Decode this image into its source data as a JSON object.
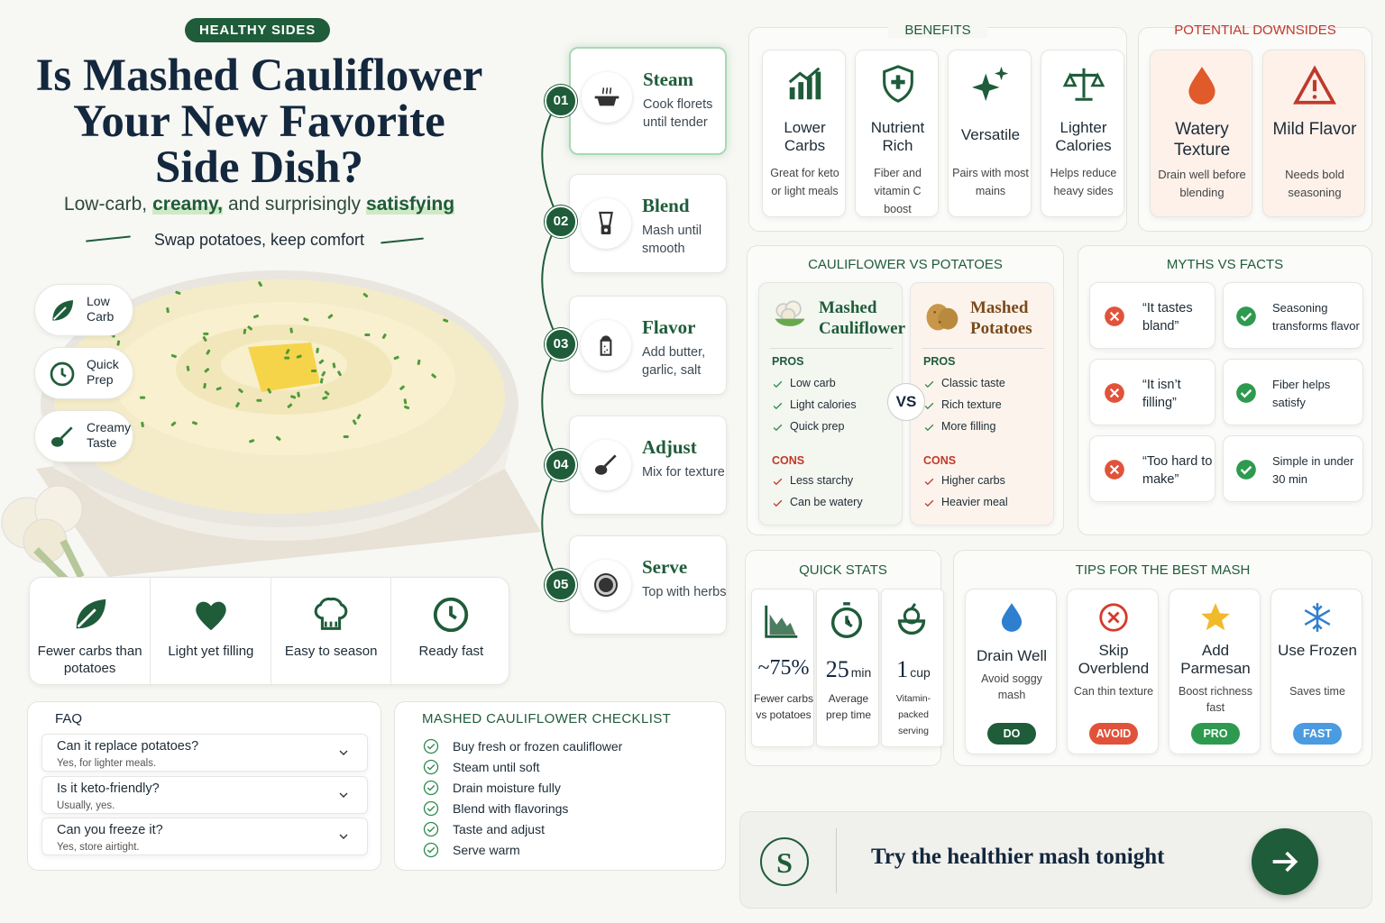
{
  "header": {
    "badge": "HEALTHY SIDES",
    "title_lines": [
      "Is Mashed Cauliflower",
      "Your New Favorite",
      "Side Dish?"
    ],
    "subtitle_parts": [
      {
        "text": "Low-carb,"
      },
      {
        "text": "creamy,",
        "highlight": true
      },
      {
        "text": "and surprisingly"
      },
      {
        "text": "satisfying",
        "highlight": true
      }
    ],
    "tagline": "Swap potatoes, keep comfort"
  },
  "tags": [
    {
      "label": "Low Carb"
    },
    {
      "label": "Quick Prep"
    },
    {
      "label": "Creamy Taste"
    }
  ],
  "features": [
    {
      "label": "Fewer carbs than potatoes"
    },
    {
      "label": "Light yet filling"
    },
    {
      "label": "Easy to season"
    },
    {
      "label": "Ready fast"
    }
  ],
  "steps": [
    {
      "number": "01",
      "title": "Steam",
      "text": "Cook florets until tender"
    },
    {
      "number": "02",
      "title": "Blend",
      "text": "Mash until smooth"
    },
    {
      "number": "03",
      "title": "Flavor",
      "text": "Add butter, garlic, salt"
    },
    {
      "number": "04",
      "title": "Adjust",
      "text": "Mix for texture"
    },
    {
      "number": "05",
      "title": "Serve",
      "text": "Top with herbs"
    }
  ],
  "benefits": {
    "title": "BENEFITS",
    "items": [
      {
        "title": "Lower Carbs",
        "text": "Great for keto or light meals"
      },
      {
        "title": "Nutrient Rich",
        "text": "Fiber and vitamin C boost"
      },
      {
        "title": "Versatile",
        "text": "Pairs with most mains"
      },
      {
        "title": "Lighter Calories",
        "text": "Helps reduce heavy sides"
      }
    ]
  },
  "downsides": {
    "title": "POTENTIAL DOWNSIDES",
    "items": [
      {
        "title": "Watery Texture",
        "text": "Drain well before blending"
      },
      {
        "title": "Mild Flavor",
        "text": "Needs bold seasoning"
      }
    ]
  },
  "comparison": {
    "title": "CAULIFLOWER VS POTATOES",
    "vs": "VS",
    "columns": [
      {
        "name": "Mashed Cauliflower",
        "pros_label": "PROS",
        "pros": [
          "Low carb",
          "Light calories",
          "Quick prep"
        ],
        "cons_label": "CONS",
        "cons": [
          "Less starchy",
          "Can be watery"
        ]
      },
      {
        "name": "Mashed Potatoes",
        "pros_label": "PROS",
        "pros": [
          "Classic taste",
          "Rich texture",
          "More filling"
        ],
        "cons_label": "CONS",
        "cons": [
          "Higher carbs",
          "Heavier meal"
        ]
      }
    ]
  },
  "myths": {
    "title": "MYTHS VS FACTS",
    "rows": [
      {
        "myth": "“It tastes bland”",
        "fact": "Seasoning transforms flavor"
      },
      {
        "myth": "“It isn’t filling”",
        "fact": "Fiber helps satisfy"
      },
      {
        "myth": "“Too hard to make”",
        "fact": "Simple in under 30 min"
      }
    ]
  },
  "quick_stats": {
    "title": "QUICK STATS",
    "items": [
      {
        "value": "~75%",
        "label": "Fewer carbs vs potatoes"
      },
      {
        "value": "25",
        "unit": "min",
        "label": "Average prep time"
      },
      {
        "value": "1",
        "unit": "cup",
        "label": "Vitamin-packed serving"
      }
    ]
  },
  "tips": {
    "title": "TIPS FOR THE BEST MASH",
    "items": [
      {
        "title": "Drain Well",
        "text": "Avoid soggy mash",
        "badge": "DO"
      },
      {
        "title": "Skip Overblend",
        "text": "Can thin texture",
        "badge": "AVOID"
      },
      {
        "title": "Add Parmesan",
        "text": "Boost richness fast",
        "badge": "PRO"
      },
      {
        "title": "Use Frozen",
        "text": "Saves time",
        "badge": "FAST"
      }
    ]
  },
  "faq": {
    "title": "FAQ",
    "items": [
      {
        "question": "Can it replace potatoes?",
        "answer": "Yes, for lighter meals."
      },
      {
        "question": "Is it keto-friendly?",
        "answer": "Usually, yes."
      },
      {
        "question": "Can you freeze it?",
        "answer": "Yes, store airtight."
      }
    ]
  },
  "checklist": {
    "title": "MASHED CAULIFLOWER CHECKLIST",
    "items": [
      "Buy fresh or frozen cauliflower",
      "Steam until soft",
      "Drain moisture fully",
      "Blend with flavorings",
      "Taste and adjust",
      "Serve warm"
    ]
  },
  "cta": {
    "logo": "S",
    "text": "Try the healthier mash tonight"
  }
}
